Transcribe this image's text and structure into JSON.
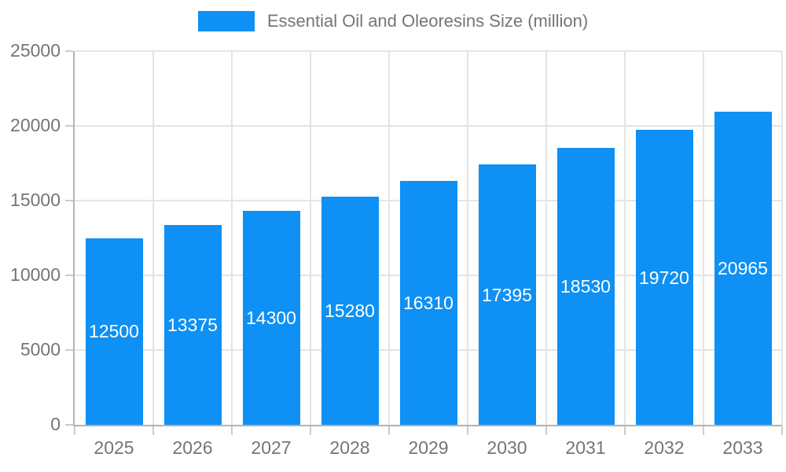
{
  "chart_data": {
    "type": "bar",
    "title": "",
    "legend_label": "Essential Oil and Oleoresins Size (million)",
    "legend_position": "top",
    "categories": [
      "2025",
      "2026",
      "2027",
      "2028",
      "2029",
      "2030",
      "2031",
      "2032",
      "2033"
    ],
    "series": [
      {
        "name": "Essential Oil and Oleoresins Size (million)",
        "values": [
          12500,
          13375,
          14300,
          15280,
          16310,
          17395,
          18530,
          19720,
          20965
        ]
      }
    ],
    "xlabel": "",
    "ylabel": "",
    "ylim": [
      0,
      25000
    ],
    "yticks": [
      0,
      5000,
      10000,
      15000,
      20000,
      25000
    ],
    "grid": true,
    "value_labels": "inside-center",
    "colors": {
      "bar": "#0e90f4",
      "bar_value_text": "#ffffff",
      "tick_text": "#757575",
      "legend_text": "#757575",
      "axis_line": "#b3b3b3",
      "tick_mark": "#cccccc",
      "gridline": "#e4e4e4",
      "background": "#ffffff"
    }
  }
}
